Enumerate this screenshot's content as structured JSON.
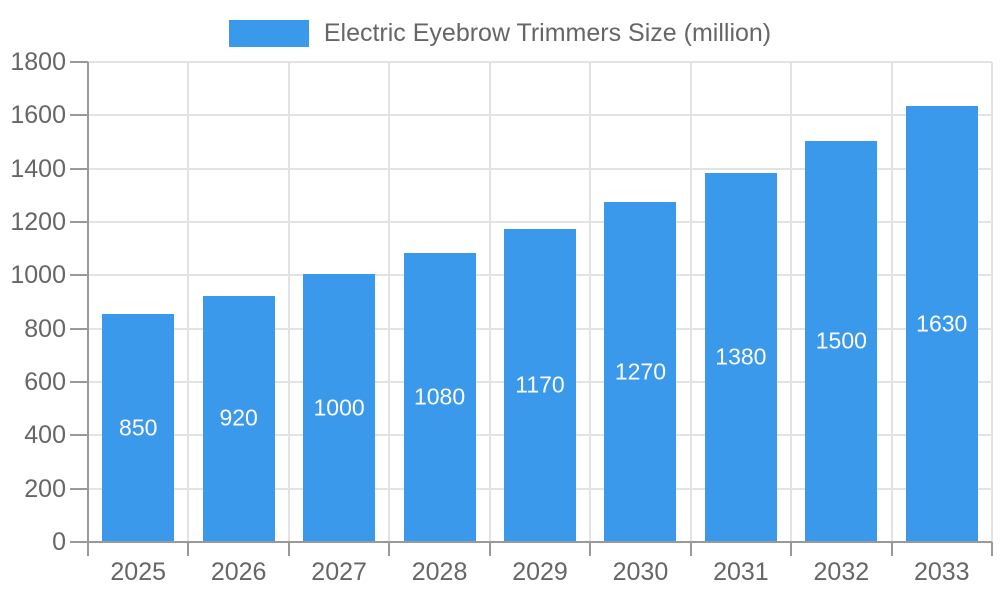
{
  "legend": {
    "label": "Electric Eyebrow Trimmers Size (million)",
    "swatch_color": "#3B99EC"
  },
  "chart_data": {
    "type": "bar",
    "title": "Electric Eyebrow Trimmers Size (million)",
    "categories": [
      "2025",
      "2026",
      "2027",
      "2028",
      "2029",
      "2030",
      "2031",
      "2032",
      "2033"
    ],
    "series": [
      {
        "name": "Electric Eyebrow Trimmers Size (million)",
        "values": [
          850,
          920,
          1000,
          1080,
          1170,
          1270,
          1380,
          1500,
          1630
        ]
      }
    ],
    "value_labels": [
      "850",
      "920",
      "1000",
      "1080",
      "1170",
      "1270",
      "1380",
      "1500",
      "1630"
    ],
    "xlabel": "",
    "ylabel": "",
    "ylim": [
      0,
      1800
    ],
    "ytick_step": 200,
    "ytick_labels": [
      "0",
      "200",
      "400",
      "600",
      "800",
      "1000",
      "1200",
      "1400",
      "1600",
      "1800"
    ],
    "grid": true,
    "legend_position": "top",
    "value_label_position": "inside-center",
    "colors": {
      "bar": "#3B99EC",
      "bar_label": "#FFFFFF",
      "axis_text": "#666666",
      "axis_line": "#999999",
      "gridline": "#E3E3E3",
      "background": "#FFFFFF"
    }
  }
}
